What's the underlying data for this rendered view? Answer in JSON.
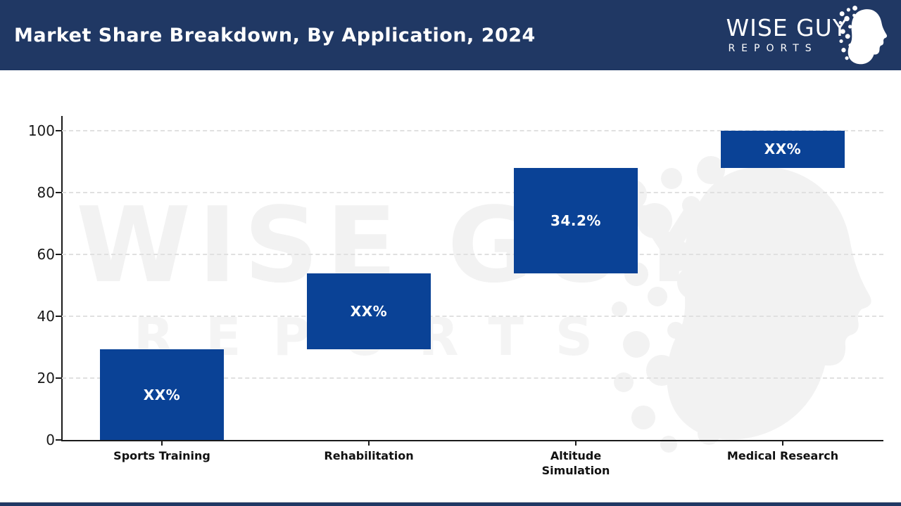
{
  "header": {
    "title": "Market Share Breakdown, By Application, 2024",
    "brand": {
      "name": "WISE GUY",
      "subtitle": "REPORTS"
    }
  },
  "watermark": {
    "line1": "WISE GUY",
    "line2": "REPORTS"
  },
  "chart_data": {
    "type": "bar",
    "subtype": "floating-waterfall",
    "title": "Market Share Breakdown, By Application, 2024",
    "categories": [
      "Sports Training",
      "Rehabilitation",
      "Altitude Simulation",
      "Medical Research"
    ],
    "segments": [
      {
        "category": "Sports Training",
        "tick_label": "Sports Training",
        "start": 0,
        "end": 29.3,
        "bar_label": "XX%"
      },
      {
        "category": "Rehabilitation",
        "tick_label": "Rehabilitation",
        "start": 29.3,
        "end": 53.8,
        "bar_label": "XX%"
      },
      {
        "category": "Altitude Simulation",
        "tick_label": "Altitude\nSimulation",
        "start": 53.8,
        "end": 88.0,
        "bar_label": "34.2%",
        "value": 34.2
      },
      {
        "category": "Medical Research",
        "tick_label": "Medical Research",
        "start": 88.0,
        "end": 100.0,
        "bar_label": "XX%"
      }
    ],
    "yticks": [
      0,
      20,
      40,
      60,
      80,
      100
    ],
    "ylim": [
      0,
      105
    ],
    "grid": "dashed-horizontal",
    "legend": "none",
    "colors": {
      "bar": "#0a4296",
      "header": "#203864",
      "footer": "#203864",
      "gridline": "#e0e0e0",
      "axis": "#1a1a1a",
      "watermark": "#f2f2f2",
      "bar_label_text": "#ffffff"
    }
  }
}
